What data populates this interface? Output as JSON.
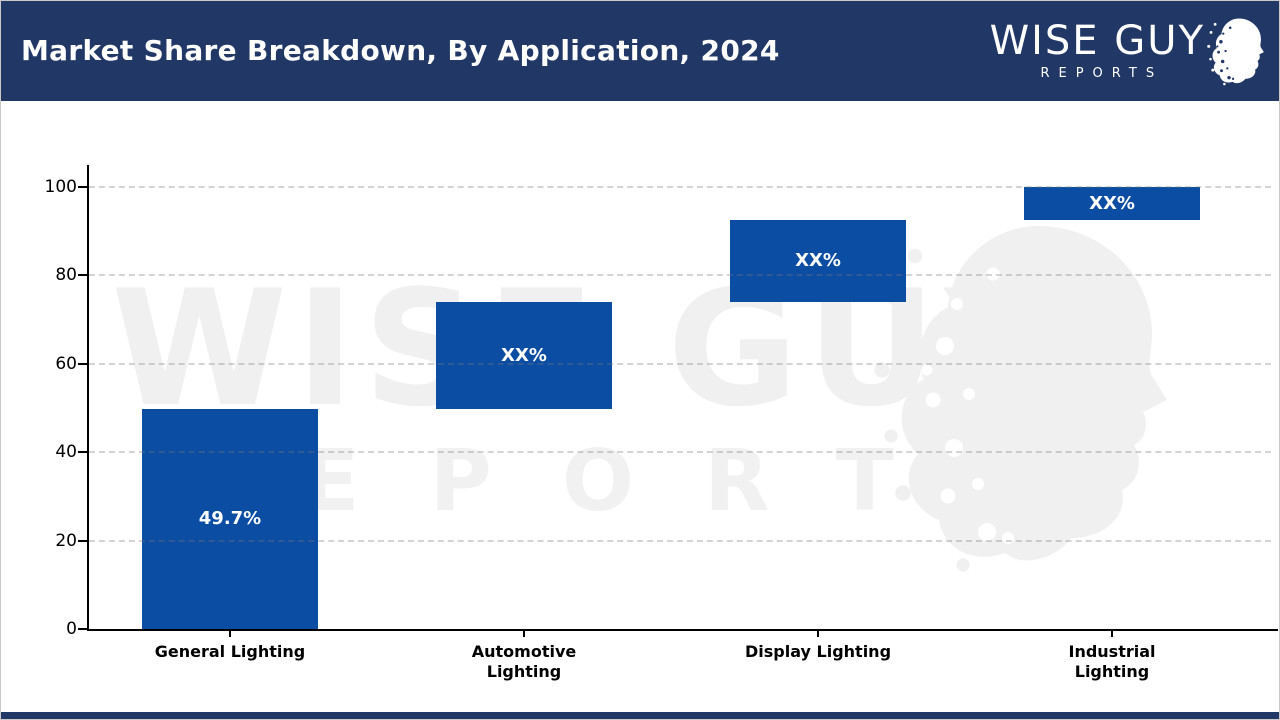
{
  "header": {
    "title": "Market Share Breakdown, By Application, 2024",
    "logo": {
      "wordmark": "WISE GUY",
      "subtitle": "REPORTS"
    }
  },
  "watermark": {
    "wordmark": "WISE GUY",
    "subtitle": "REPORTS"
  },
  "chart_data": {
    "type": "bar",
    "subtype": "waterfall",
    "title": "Market Share Breakdown, By Application, 2024",
    "categories": [
      "General Lighting",
      "Automotive Lighting",
      "Display Lighting",
      "Industrial Lighting"
    ],
    "category_label_lines": [
      [
        "General Lighting"
      ],
      [
        "Automotive",
        "Lighting"
      ],
      [
        "Display Lighting"
      ],
      [
        "Industrial",
        "Lighting"
      ]
    ],
    "segments": [
      {
        "category": "General Lighting",
        "start": 0,
        "end": 49.7,
        "size": 49.7,
        "value_label": "49.7%"
      },
      {
        "category": "Automotive Lighting",
        "start": 49.7,
        "end": 74.0,
        "size": 24.3,
        "value_label": "XX%"
      },
      {
        "category": "Display Lighting",
        "start": 74.0,
        "end": 92.5,
        "size": 18.5,
        "value_label": "XX%"
      },
      {
        "category": "Industrial Lighting",
        "start": 92.5,
        "end": 100.0,
        "size": 7.5,
        "value_label": "XX%"
      }
    ],
    "yticks": [
      0,
      20,
      40,
      60,
      80,
      100
    ],
    "ylim": [
      0,
      105
    ],
    "xlabel": "",
    "ylabel": "",
    "grid": "horizontal-dashed",
    "legend": "none",
    "bar_color": "#0b4da2",
    "bar_label_color": "#ffffff"
  },
  "colors": {
    "header_bg": "#213867",
    "footer_bg": "#213867",
    "bar": "#0b4da2",
    "axis": "#000000",
    "gridline": "#d9d9d9",
    "watermark": "#f0f0f0",
    "canvas": "#ffffff",
    "border": "#c9c9c9"
  }
}
